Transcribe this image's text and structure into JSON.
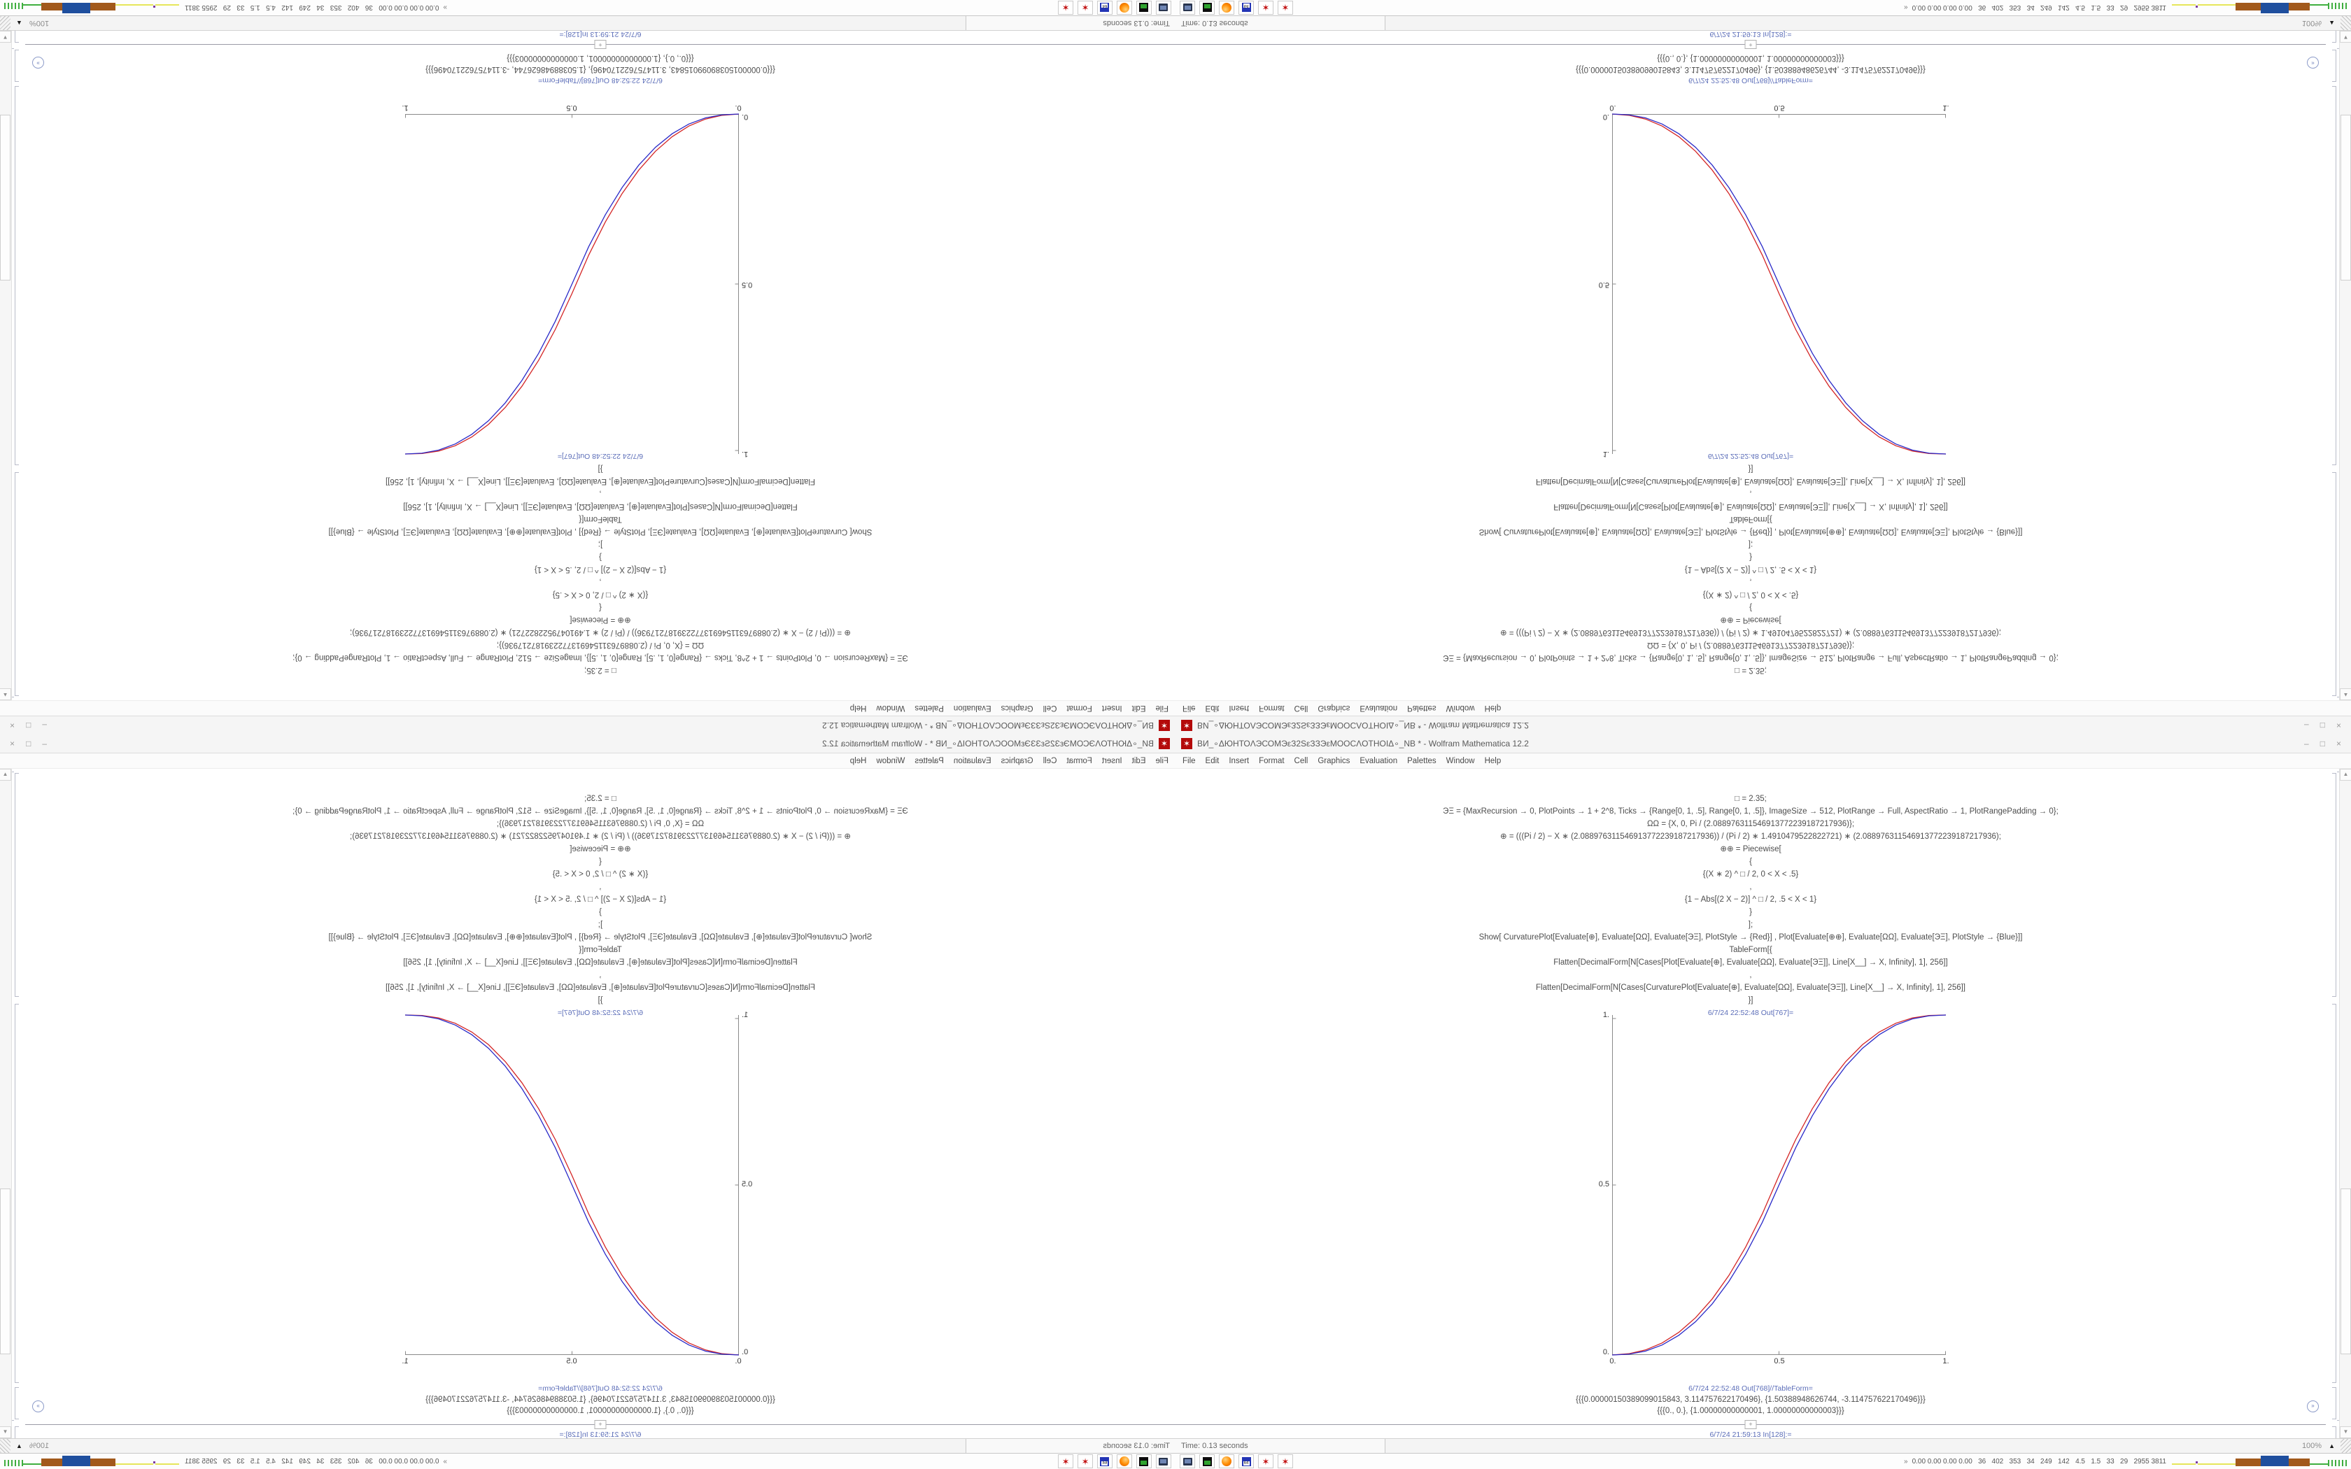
{
  "window": {
    "title": "ВИ_∘ΔЮНТОΛЭСОМЭεЗ2SεЗЗЭεМООСΛОТНОІΔ∘_NB * - Wolfram Mathematica 12.2",
    "app_icon_glyph": "✶",
    "menu": [
      "File",
      "Edit",
      "Insert",
      "Format",
      "Cell",
      "Graphics",
      "Evaluation",
      "Palettes",
      "Window",
      "Help"
    ],
    "buttons": {
      "minimize": "–",
      "maximize": "□",
      "close": "×"
    }
  },
  "notebook": {
    "input_lines": [
      "□ = 2.35;",
      "ЭΞ = {MaxRecursion → 0, PlotPoints → 1 + 2^8, Ticks → {Range[0, 1, .5], Range[0, 1, .5]}, ImageSize → 512, PlotRange → Full, AspectRatio → 1, PlotRangePadding → 0};",
      "ΩΩ = {X, 0, Pi / (2.088976311546913772239187217936)};",
      "⊕ = (((Pi / 2) − X ∗ (2.088976311546913772239187217936)) / (Pi / 2) ∗ 1.4910479522822721) ∗ (2.088976311546913772239187217936);",
      "⊕⊕ = Piecewise[",
      "{",
      "{(X ∗ 2) ^ □ / 2, 0 < X < .5}",
      ",",
      "{1 − Abs[(2 X − 2)] ^ □ / 2, .5 < X < 1}",
      "}",
      "];",
      "Show[  CurvaturePlot[Evaluate[⊕], Evaluate[ΩΩ], Evaluate[ЭΞ], PlotStyle → {Red}]  ,  Plot[Evaluate[⊕⊕], Evaluate[ΩΩ], Evaluate[ЭΞ], PlotStyle → {Blue}]]",
      "TableForm[{",
      "Flatten[DecimalForm[N[Cases[Plot[Evaluate[⊕], Evaluate[ΩΩ], Evaluate[ЭΞ]], Line[X__] → X, Infinity], 1], 256]]",
      ",",
      "Flatten[DecimalForm[N[Cases[CurvaturePlot[Evaluate[⊕], Evaluate[ΩΩ], Evaluate[ЭΞ]], Line[X__] → X, Infinity], 1], 256]]",
      "}]"
    ],
    "out_plot_label": "6/7/24 22:52:48 Out[767]=",
    "out_table_label": "6/7/24 22:52:48 Out[768]//TableForm=",
    "table_rows": [
      "{{{0.00000150389099015843, 3.114757622170496}, {1.50388948626744, -3.114757622170496}}}",
      "{{{0., 0.}, {1.00000000000001, 1.00000000000003}}}"
    ],
    "insert_plus": "+",
    "next_in_label": "6/7/24 21:59:13 In[128]:=",
    "more_output_glyph": "»"
  },
  "plot": {
    "type": "line",
    "x_ticks": [
      "0.",
      "0.5",
      "1."
    ],
    "y_ticks": [
      "0.",
      "0.5",
      "1."
    ],
    "xlim": [
      0,
      1
    ],
    "ylim": [
      0,
      1
    ],
    "axis_color": "#8a8a8a",
    "series": [
      {
        "name": "CurvaturePlot (Red)",
        "color": "#d42525",
        "points": [
          [
            0,
            0.0001
          ],
          [
            0.05,
            0.0037
          ],
          [
            0.1,
            0.0149
          ],
          [
            0.15,
            0.0354
          ],
          [
            0.2,
            0.0666
          ],
          [
            0.25,
            0.1096
          ],
          [
            0.3,
            0.1651
          ],
          [
            0.35,
            0.234
          ],
          [
            0.4,
            0.3172
          ],
          [
            0.45,
            0.4153
          ],
          [
            0.5,
            0.5277
          ],
          [
            0.55,
            0.6337
          ],
          [
            0.6,
            0.7245
          ],
          [
            0.65,
            0.8008
          ],
          [
            0.7,
            0.8632
          ],
          [
            0.75,
            0.9127
          ],
          [
            0.8,
            0.9498
          ],
          [
            0.85,
            0.9757
          ],
          [
            0.9,
            0.9916
          ],
          [
            0.95,
            0.9988
          ],
          [
            1,
            1
          ]
        ]
      },
      {
        "name": "Plot (Blue)",
        "color": "#2a2ac8",
        "points": [
          [
            0,
            0
          ],
          [
            0.05,
            0.0022
          ],
          [
            0.1,
            0.0114
          ],
          [
            0.15,
            0.0295
          ],
          [
            0.2,
            0.058
          ],
          [
            0.25,
            0.098
          ],
          [
            0.3,
            0.1505
          ],
          [
            0.35,
            0.2163
          ],
          [
            0.4,
            0.296
          ],
          [
            0.45,
            0.3904
          ],
          [
            0.5,
            0.5
          ],
          [
            0.55,
            0.6096
          ],
          [
            0.6,
            0.704
          ],
          [
            0.65,
            0.7837
          ],
          [
            0.7,
            0.8495
          ],
          [
            0.75,
            0.902
          ],
          [
            0.8,
            0.942
          ],
          [
            0.85,
            0.9705
          ],
          [
            0.9,
            0.9886
          ],
          [
            0.95,
            0.9978
          ],
          [
            1,
            1
          ]
        ]
      }
    ]
  },
  "statusbar": {
    "time": "Time: 0.13 seconds",
    "zoom": "100%",
    "zoom_arrow": "▲"
  },
  "taskbar": {
    "chevron": "»",
    "stats": "0.00 0.00 0.00 0.00   36   402   353   34   249   142   4.5   1.5   33   29   2955 3811",
    "floppy_label": "64",
    "spikey_glyph": "✶",
    "launchers": [
      "system-monitor",
      "terminal",
      "firefox",
      "floppy-64",
      "mathematica",
      "mathematica-2"
    ]
  },
  "scrollbar": {
    "up_arrow": "▲",
    "down_arrow": "▼"
  }
}
